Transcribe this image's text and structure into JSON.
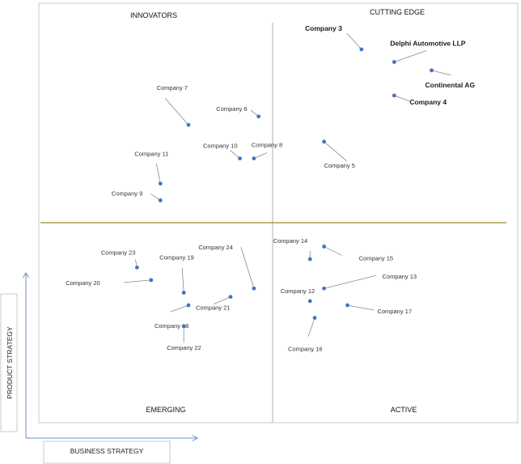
{
  "chart_data": {
    "type": "scatter",
    "title": "",
    "xlabel": "BUSINESS STRATEGY",
    "ylabel": "PRODUCT STRATEGY",
    "quadrants": {
      "top_left": "INNOVATORS",
      "top_right": "CUTTING EDGE",
      "bottom_left": "EMERGING",
      "bottom_right": "ACTIVE"
    },
    "points": [
      {
        "name": "Company 3",
        "x": 6.9,
        "y": 8.9
      },
      {
        "name": "Delphi Automotive LLP",
        "x": 7.6,
        "y": 8.6
      },
      {
        "name": "Continental AG",
        "x": 8.4,
        "y": 8.4
      },
      {
        "name": "Company 4",
        "x": 7.6,
        "y": 7.8
      },
      {
        "name": "Company 5",
        "x": 6.1,
        "y": 6.7
      },
      {
        "name": "Company 7",
        "x": 3.2,
        "y": 7.1
      },
      {
        "name": "Company 6",
        "x": 4.7,
        "y": 7.3
      },
      {
        "name": "Company 10",
        "x": 4.3,
        "y": 6.3
      },
      {
        "name": "Company 8",
        "x": 4.6,
        "y": 6.3
      },
      {
        "name": "Company 11",
        "x": 2.6,
        "y": 5.7
      },
      {
        "name": "Company 9",
        "x": 2.6,
        "y": 5.3
      },
      {
        "name": "Company 23",
        "x": 2.1,
        "y": 3.7
      },
      {
        "name": "Company 20",
        "x": 2.4,
        "y": 3.4
      },
      {
        "name": "Company 19",
        "x": 3.1,
        "y": 3.1
      },
      {
        "name": "Company 24",
        "x": 4.6,
        "y": 3.2
      },
      {
        "name": "Company 21",
        "x": 4.1,
        "y": 3.0
      },
      {
        "name": "Company 18",
        "x": 3.2,
        "y": 2.8
      },
      {
        "name": "Company 22",
        "x": 3.1,
        "y": 2.3
      },
      {
        "name": "Company 14",
        "x": 5.8,
        "y": 3.9
      },
      {
        "name": "Company 15",
        "x": 6.1,
        "y": 4.2
      },
      {
        "name": "Company 12",
        "x": 5.8,
        "y": 2.9
      },
      {
        "name": "Company 13",
        "x": 6.1,
        "y": 3.2
      },
      {
        "name": "Company 17",
        "x": 6.6,
        "y": 2.8
      },
      {
        "name": "Company 16",
        "x": 5.9,
        "y": 2.5
      }
    ],
    "bold_labels": [
      "Company 3",
      "Delphi Automotive LLP",
      "Continental AG",
      "Company 4"
    ],
    "xlim": [
      0,
      10
    ],
    "ylim": [
      0,
      10
    ],
    "divider_color": "#9c8a2a",
    "marker_color": "#4472c4",
    "axis_arrow_color": "#6f8fc8"
  }
}
